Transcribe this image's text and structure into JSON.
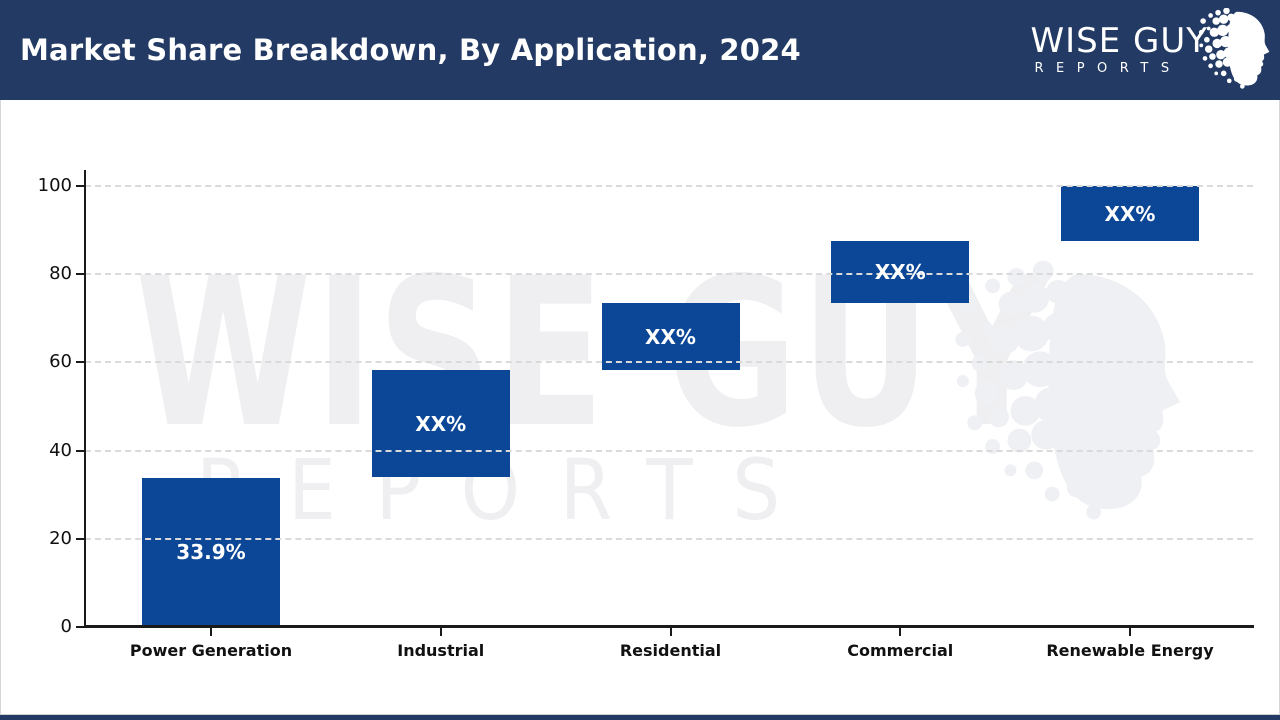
{
  "header": {
    "title": "Market Share Breakdown, By Application, 2024",
    "logo": {
      "line1": "WISE GUY",
      "line2": "REPORTS"
    }
  },
  "watermark": {
    "line1": "WISE GUY",
    "line2": "REPORTS"
  },
  "chart_data": {
    "type": "bar",
    "subtype": "waterfall",
    "title": "Market Share Breakdown, By Application, 2024",
    "categories": [
      "Power Generation",
      "Industrial",
      "Residential",
      "Commercial",
      "Renewable Energy"
    ],
    "bars": [
      {
        "category": "Power Generation",
        "start": 0,
        "end": 33.9,
        "value": 33.9,
        "label": "33.9%"
      },
      {
        "category": "Industrial",
        "start": 33.9,
        "end": 58.2,
        "value": 24.3,
        "label": "XX%"
      },
      {
        "category": "Residential",
        "start": 58.2,
        "end": 73.4,
        "value": 15.2,
        "label": "XX%"
      },
      {
        "category": "Commercial",
        "start": 73.4,
        "end": 87.5,
        "value": 14.1,
        "label": "XX%"
      },
      {
        "category": "Renewable Energy",
        "start": 87.5,
        "end": 100,
        "value": 12.5,
        "label": "XX%"
      }
    ],
    "xlabel": "",
    "ylabel": "",
    "yticks": [
      0,
      20,
      40,
      60,
      80,
      100
    ],
    "ylim": [
      0,
      104
    ],
    "legend": "none",
    "grid": "dashed-horizontal",
    "colors": {
      "bar": "#0b4796",
      "bar_label_text": "#ffffff",
      "grid": "#dadada",
      "axis": "#1a1a1a",
      "header_bg": "#223a64",
      "watermark": "#efeff2"
    }
  }
}
